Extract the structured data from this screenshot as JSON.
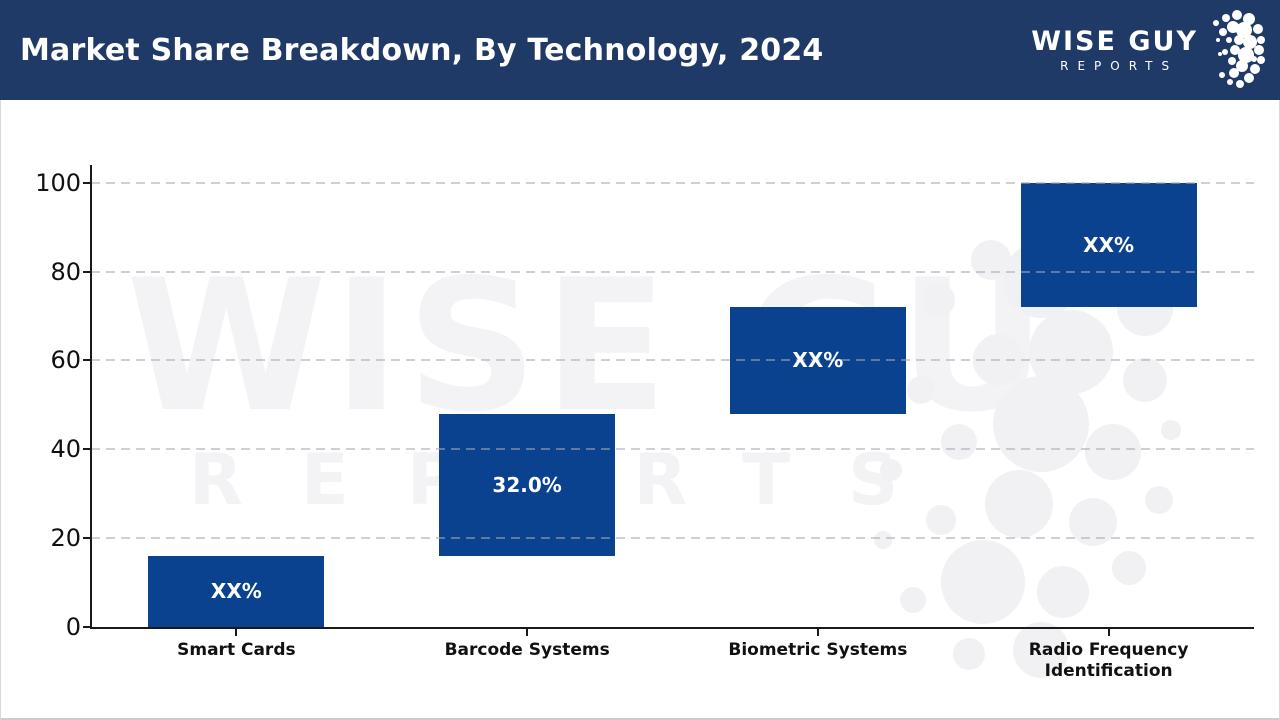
{
  "header": {
    "title": "Market Share Breakdown, By Technology, 2024",
    "logo": {
      "line1": "WISE GUY",
      "line2": "REPORTS"
    }
  },
  "watermark": {
    "line1": "WISE GU",
    "line2": "REPORTS"
  },
  "chart_data": {
    "type": "bar",
    "subtype": "floating-waterfall",
    "title": "Market Share Breakdown, By Technology, 2024",
    "categories": [
      "Smart Cards",
      "Barcode Systems",
      "Biometric Systems",
      "Radio Frequency Identification"
    ],
    "bars": [
      {
        "category": "Smart Cards",
        "start": 0,
        "end": 16,
        "value": 16,
        "label": "XX%"
      },
      {
        "category": "Barcode Systems",
        "start": 16,
        "end": 48,
        "value": 32,
        "label": "32.0%"
      },
      {
        "category": "Biometric Systems",
        "start": 48,
        "end": 72,
        "value": 24,
        "label": "XX%"
      },
      {
        "category": "Radio Frequency Identification",
        "start": 72,
        "end": 100,
        "value": 28,
        "label": "XX%"
      }
    ],
    "xlabel": "",
    "ylabel": "",
    "yticks": [
      0,
      20,
      40,
      60,
      80,
      100
    ],
    "ylim": [
      0,
      104
    ],
    "grid": "horizontal-dashed",
    "legend": "none",
    "bar_color": "#0A428F",
    "bar_label_color": "#ffffff",
    "axis_color": "#1a1a1a",
    "header_color": "#1F3A67"
  }
}
